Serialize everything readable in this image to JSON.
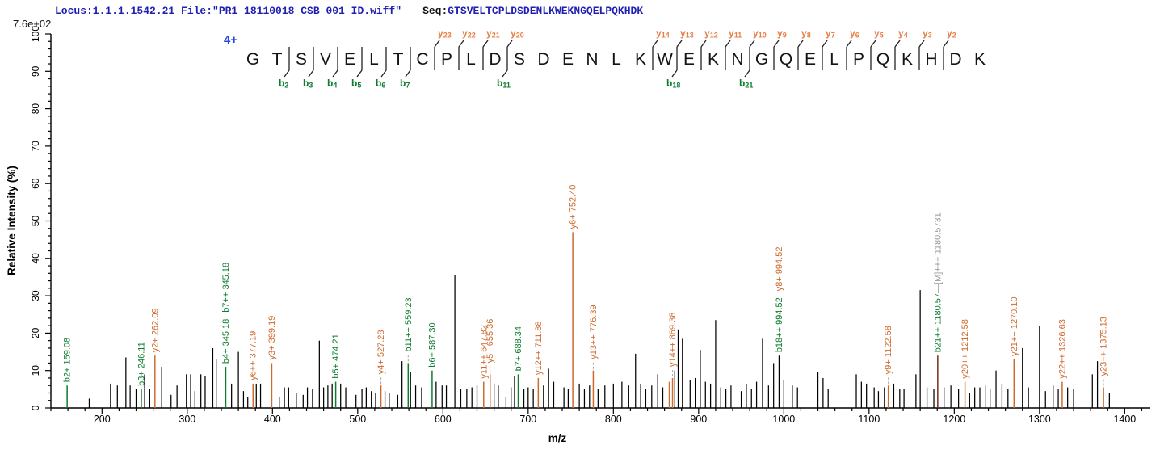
{
  "header": {
    "locus_file": "Locus:1.1.1.1542.21 File:\"PR1_18110018_CSB_001_ID.wiff\"",
    "seq_label": "Seq:",
    "sequence": "GTSVELTCPLDSDENLKWEKNGQELPQKHDK"
  },
  "sequence_panel": {
    "charge_label": "4+",
    "residues": [
      "G",
      "T",
      "S",
      "V",
      "E",
      "L",
      "T",
      "C",
      "P",
      "L",
      "D",
      "S",
      "D",
      "E",
      "N",
      "L",
      "K",
      "W",
      "E",
      "K",
      "N",
      "G",
      "Q",
      "E",
      "L",
      "P",
      "Q",
      "K",
      "H",
      "D",
      "K"
    ],
    "b_ions": [
      {
        "after": 2,
        "name": "b2"
      },
      {
        "after": 3,
        "name": "b3"
      },
      {
        "after": 4,
        "name": "b4"
      },
      {
        "after": 5,
        "name": "b5"
      },
      {
        "after": 6,
        "name": "b6"
      },
      {
        "after": 7,
        "name": "b7"
      },
      {
        "after": 11,
        "name": "b11"
      },
      {
        "after": 18,
        "name": "b18"
      },
      {
        "after": 21,
        "name": "b21"
      }
    ],
    "y_ions": [
      {
        "after": 8,
        "name": "y23"
      },
      {
        "after": 9,
        "name": "y22"
      },
      {
        "after": 10,
        "name": "y21"
      },
      {
        "after": 11,
        "name": "y20"
      },
      {
        "after": 17,
        "name": "y14"
      },
      {
        "after": 18,
        "name": "y13"
      },
      {
        "after": 19,
        "name": "y12"
      },
      {
        "after": 20,
        "name": "y11"
      },
      {
        "after": 21,
        "name": "y10"
      },
      {
        "after": 22,
        "name": "y9"
      },
      {
        "after": 23,
        "name": "y8"
      },
      {
        "after": 24,
        "name": "y7"
      },
      {
        "after": 25,
        "name": "y6"
      },
      {
        "after": 26,
        "name": "y5"
      },
      {
        "after": 27,
        "name": "y4"
      },
      {
        "after": 28,
        "name": "y3"
      },
      {
        "after": 29,
        "name": "y2"
      }
    ]
  },
  "chart_data": {
    "type": "bar",
    "subtype": "mass-spectrum",
    "scale_label": "7.6e+02",
    "xlabel": "m/z",
    "ylabel": "Relative  Intensity (%)",
    "xlim": [
      140,
      1430
    ],
    "ylim": [
      0,
      100
    ],
    "x_major_ticks": [
      200,
      300,
      400,
      500,
      600,
      700,
      800,
      900,
      1000,
      1100,
      1200,
      1300,
      1400
    ],
    "x_minor_step": 20,
    "y_major_step": 10,
    "y_minor_step": 2,
    "grid": false,
    "colors": {
      "b_ion": "#0b7d2d",
      "y_ion": "#cd6a2e",
      "y_ion_seq": "#e87f45",
      "precursor_label": "#999999",
      "precursor_peak": "#7b2c1e",
      "peak_default": "#000000",
      "leader": "#aaaaaa",
      "charge": "#2a46e0",
      "header_blue": "#1f1fb4"
    },
    "labeled_peaks": [
      {
        "mz": 159.08,
        "intensity": 6,
        "color": "b",
        "dash": false,
        "parts": [
          {
            "text": "b2+ 159.08",
            "series": "b"
          }
        ]
      },
      {
        "mz": 246.11,
        "intensity": 5,
        "color": "b",
        "dash": false,
        "parts": [
          {
            "text": "b3+ 246.11",
            "series": "b"
          }
        ]
      },
      {
        "mz": 262.09,
        "intensity": 14,
        "color": "y",
        "dash": false,
        "parts": [
          {
            "text": "y2+ 262.09",
            "series": "y"
          }
        ]
      },
      {
        "mz": 345.18,
        "intensity": 11,
        "color": "b",
        "dash": false,
        "parts": [
          {
            "text": "b4+ 345.18",
            "series": "b"
          },
          {
            "text": "b7++ 345.18",
            "series": "b"
          }
        ]
      },
      {
        "mz": 377.19,
        "intensity": 6.5,
        "color": "y",
        "dash": false,
        "parts": [
          {
            "text": "y6++ 377.19",
            "series": "y"
          }
        ]
      },
      {
        "mz": 399.19,
        "intensity": 12,
        "color": "y",
        "dash": false,
        "parts": [
          {
            "text": "y3+ 399.19",
            "series": "y"
          }
        ]
      },
      {
        "mz": 474.21,
        "intensity": 7,
        "color": "b",
        "dash": false,
        "parts": [
          {
            "text": "b5+ 474.21",
            "series": "b"
          }
        ]
      },
      {
        "mz": 527.28,
        "intensity": 6,
        "color": "y",
        "dash": true,
        "parts": [
          {
            "text": "y4+ 527.28",
            "series": "y"
          }
        ]
      },
      {
        "mz": 559.23,
        "intensity": 12,
        "color": "b",
        "dash": true,
        "parts": [
          {
            "text": "b11++ 559.23",
            "series": "b"
          }
        ]
      },
      {
        "mz": 587.3,
        "intensity": 10,
        "color": "b",
        "dash": false,
        "parts": [
          {
            "text": "b6+ 587.30",
            "series": "b"
          }
        ]
      },
      {
        "mz": 647.82,
        "intensity": 7,
        "color": "y",
        "dash": false,
        "parts": [
          {
            "text": "y11++ 647.82",
            "series": "y"
          }
        ]
      },
      {
        "mz": 655.36,
        "intensity": 9,
        "color": "y",
        "dash": true,
        "parts": [
          {
            "text": "y5+ 655.36",
            "series": "y"
          }
        ]
      },
      {
        "mz": 688.34,
        "intensity": 9,
        "color": "b",
        "dash": false,
        "parts": [
          {
            "text": "b7+ 688.34",
            "series": "b"
          }
        ]
      },
      {
        "mz": 711.88,
        "intensity": 8,
        "color": "y",
        "dash": false,
        "parts": [
          {
            "text": "y12++ 711.88",
            "series": "y"
          }
        ]
      },
      {
        "mz": 752.4,
        "intensity": 47,
        "color": "y",
        "dash": false,
        "parts": [
          {
            "text": "y6+ 752.40",
            "series": "y"
          }
        ]
      },
      {
        "mz": 776.39,
        "intensity": 10,
        "color": "y",
        "dash": true,
        "parts": [
          {
            "text": "y13++ 776.39",
            "series": "y"
          }
        ]
      },
      {
        "mz": 869.38,
        "intensity": 8,
        "color": "y",
        "dash": true,
        "parts": [
          {
            "text": "y14++ 869.38",
            "series": "y"
          }
        ]
      },
      {
        "mz": 994.52,
        "intensity": 14,
        "color": "k",
        "dash": false,
        "parts": [
          {
            "text": "b18++ 994.52",
            "series": "b"
          },
          {
            "text": "y8+ 994.52",
            "series": "y"
          }
        ]
      },
      {
        "mz": 1122.58,
        "intensity": 6,
        "color": "y",
        "dash": true,
        "parts": [
          {
            "text": "y9+ 1122.58",
            "series": "y"
          }
        ]
      },
      {
        "mz": 1180.57,
        "intensity": 14,
        "color": "m",
        "dash": false,
        "parts": [
          {
            "text": "b21++ 1180.57",
            "series": "b"
          },
          {
            "text": "—[M]+++ 1180.5731",
            "series": "m"
          }
        ]
      },
      {
        "mz": 1212.58,
        "intensity": 7,
        "color": "y",
        "dash": false,
        "parts": [
          {
            "text": "y20++ 1212.58",
            "series": "y"
          }
        ]
      },
      {
        "mz": 1270.1,
        "intensity": 13,
        "color": "y",
        "dash": false,
        "parts": [
          {
            "text": "y21++ 1270.10",
            "series": "y"
          }
        ]
      },
      {
        "mz": 1326.63,
        "intensity": 7,
        "color": "y",
        "dash": false,
        "parts": [
          {
            "text": "y22++ 1326.63",
            "series": "y"
          }
        ]
      },
      {
        "mz": 1375.13,
        "intensity": 5.5,
        "color": "y",
        "dash": true,
        "parts": [
          {
            "text": "y23++ 1375.13",
            "series": "y"
          }
        ]
      }
    ],
    "peaks": [
      [
        185,
        2.5
      ],
      [
        210,
        6.5
      ],
      [
        218,
        6
      ],
      [
        228,
        13.5
      ],
      [
        233,
        6
      ],
      [
        240,
        5
      ],
      [
        250,
        9
      ],
      [
        256,
        5
      ],
      [
        270,
        11
      ],
      [
        281,
        3.5
      ],
      [
        288,
        6
      ],
      [
        299,
        9
      ],
      [
        304,
        9
      ],
      [
        309,
        4.5
      ],
      [
        316,
        9
      ],
      [
        321,
        8.5
      ],
      [
        330,
        16
      ],
      [
        334,
        13
      ],
      [
        352,
        6.5
      ],
      [
        360,
        15
      ],
      [
        366,
        4.5
      ],
      [
        371,
        3
      ],
      [
        381,
        6.5
      ],
      [
        386,
        6.5
      ],
      [
        408,
        3
      ],
      [
        414,
        5.5
      ],
      [
        419,
        5.5
      ],
      [
        428,
        4
      ],
      [
        436,
        3.5
      ],
      [
        441,
        5.5
      ],
      [
        447,
        5
      ],
      [
        455,
        18
      ],
      [
        460,
        5.5
      ],
      [
        465,
        6
      ],
      [
        470,
        6.5
      ],
      [
        480,
        6.5
      ],
      [
        486,
        5.5
      ],
      [
        498,
        3.5
      ],
      [
        505,
        5
      ],
      [
        510,
        5.5
      ],
      [
        516,
        4.5
      ],
      [
        521,
        4
      ],
      [
        532,
        4.5
      ],
      [
        537,
        4
      ],
      [
        547,
        3.5
      ],
      [
        552,
        12.5
      ],
      [
        562,
        9.5
      ],
      [
        568,
        6
      ],
      [
        575,
        5.5
      ],
      [
        592,
        7
      ],
      [
        599,
        6
      ],
      [
        604,
        6
      ],
      [
        614,
        35.5
      ],
      [
        621,
        5
      ],
      [
        628,
        5
      ],
      [
        634,
        5.5
      ],
      [
        640,
        6
      ],
      [
        660,
        6.5
      ],
      [
        665,
        6
      ],
      [
        674,
        3
      ],
      [
        680,
        5.5
      ],
      [
        684,
        8.5
      ],
      [
        695,
        5
      ],
      [
        700,
        5.5
      ],
      [
        706,
        5
      ],
      [
        718,
        6
      ],
      [
        724,
        10.5
      ],
      [
        730,
        7
      ],
      [
        742,
        5.5
      ],
      [
        747,
        5
      ],
      [
        760,
        6.5
      ],
      [
        766,
        5
      ],
      [
        772,
        6
      ],
      [
        782,
        5
      ],
      [
        790,
        6
      ],
      [
        800,
        6.5
      ],
      [
        810,
        7
      ],
      [
        818,
        6
      ],
      [
        826,
        14.5
      ],
      [
        832,
        6.5
      ],
      [
        838,
        5
      ],
      [
        845,
        6
      ],
      [
        852,
        9
      ],
      [
        858,
        5.5
      ],
      [
        865.49,
        7,
        "y"
      ],
      [
        872,
        10
      ],
      [
        876,
        21
      ],
      [
        881,
        18.5
      ],
      [
        890,
        7.5
      ],
      [
        896,
        8
      ],
      [
        902,
        15.5
      ],
      [
        908,
        7
      ],
      [
        914,
        6.5
      ],
      [
        920,
        23.5
      ],
      [
        926,
        5.5
      ],
      [
        932,
        5
      ],
      [
        938,
        6
      ],
      [
        950,
        4.5
      ],
      [
        956,
        6.5
      ],
      [
        962,
        5
      ],
      [
        968,
        7
      ],
      [
        975,
        18.5
      ],
      [
        982,
        6
      ],
      [
        988,
        12
      ],
      [
        1000,
        7.5
      ],
      [
        1010,
        6
      ],
      [
        1016,
        5.5
      ],
      [
        1040,
        9.5
      ],
      [
        1046,
        8
      ],
      [
        1052,
        5
      ],
      [
        1085,
        9
      ],
      [
        1091,
        7
      ],
      [
        1097,
        6.5
      ],
      [
        1106,
        5.5
      ],
      [
        1111,
        4.5
      ],
      [
        1118,
        5.5
      ],
      [
        1129,
        6.5
      ],
      [
        1136,
        5
      ],
      [
        1141,
        5
      ],
      [
        1155,
        9
      ],
      [
        1160,
        31.5
      ],
      [
        1168,
        5.5
      ],
      [
        1176,
        5
      ],
      [
        1188,
        5.5
      ],
      [
        1196,
        6
      ],
      [
        1205,
        5
      ],
      [
        1218,
        4
      ],
      [
        1224,
        5.5
      ],
      [
        1230,
        5.5
      ],
      [
        1237,
        6
      ],
      [
        1242,
        5
      ],
      [
        1249,
        10
      ],
      [
        1256,
        6.5
      ],
      [
        1263,
        5
      ],
      [
        1280,
        16
      ],
      [
        1287,
        5.5
      ],
      [
        1300,
        22
      ],
      [
        1307,
        4.5
      ],
      [
        1316,
        6
      ],
      [
        1322,
        5
      ],
      [
        1333,
        5.5
      ],
      [
        1340,
        5
      ],
      [
        1362,
        9
      ],
      [
        1368,
        12.5
      ],
      [
        1382,
        4
      ]
    ]
  }
}
